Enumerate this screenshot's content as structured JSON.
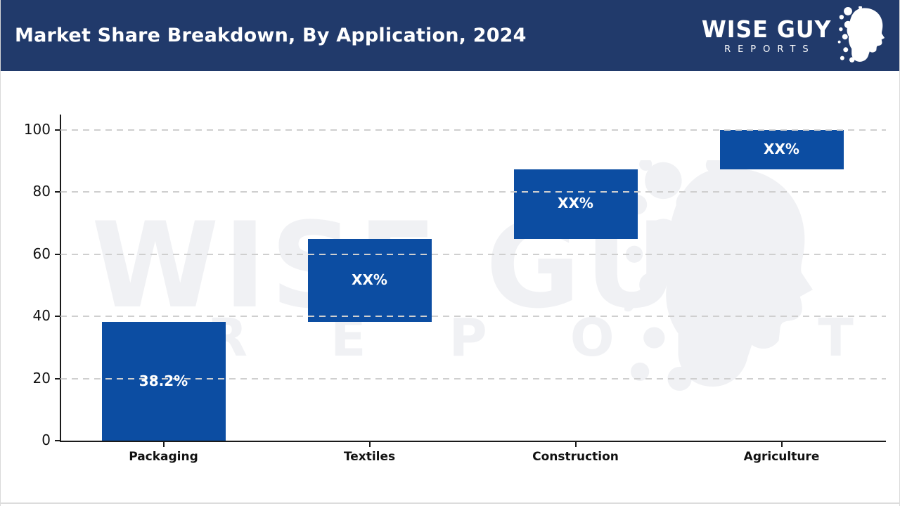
{
  "header": {
    "title": "Market Share Breakdown, By Application, 2024",
    "bg_color": "#213a6b",
    "logo": {
      "line1": "WISE GUY",
      "line2": "REPORTS"
    }
  },
  "watermark": {
    "line1": "WISE GUY",
    "line2": "REPORTS"
  },
  "chart_data": {
    "type": "bar",
    "subtype": "waterfall",
    "title": "Market Share Breakdown, By Application, 2024",
    "categories": [
      "Packaging",
      "Textiles",
      "Construction",
      "Agriculture"
    ],
    "segments": [
      {
        "category": "Packaging",
        "start": 0,
        "end": 38.2,
        "label": "38.2%"
      },
      {
        "category": "Textiles",
        "start": 38.2,
        "end": 65,
        "label": "XX%"
      },
      {
        "category": "Construction",
        "start": 65,
        "end": 87.3,
        "label": "XX%"
      },
      {
        "category": "Agriculture",
        "start": 87.3,
        "end": 100,
        "label": "XX%"
      }
    ],
    "ylim": [
      0,
      100
    ],
    "yticks": [
      0,
      20,
      40,
      60,
      80,
      100
    ],
    "ytick_labels": [
      "0",
      "20",
      "40",
      "60",
      "80",
      "100"
    ],
    "grid": "horizontal-dashed-over-bars",
    "legend": "none",
    "bar_color": "#0c4da2",
    "bar_label_color": "#ffffff",
    "axis_color": "#1a1a1a",
    "gridline_color": "#cfcfcf"
  }
}
